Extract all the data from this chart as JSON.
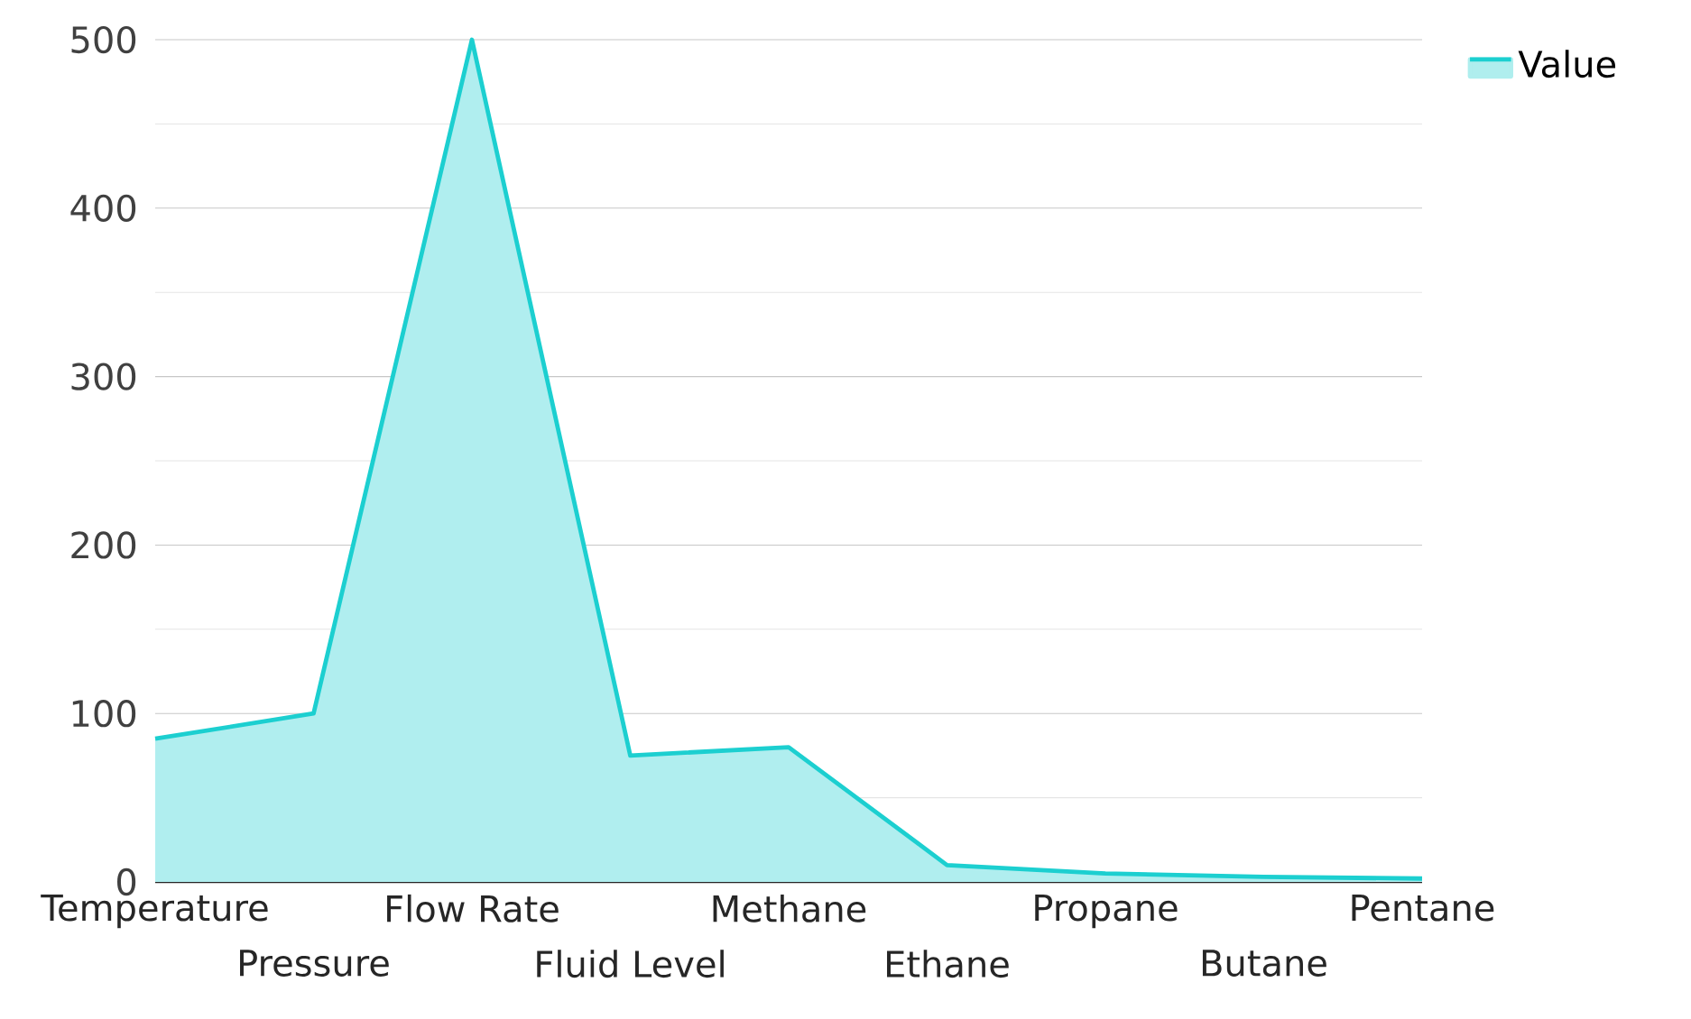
{
  "chart_data": {
    "type": "area",
    "categories": [
      "Temperature",
      "Pressure",
      "Flow Rate",
      "Fluid Level",
      "Methane",
      "Ethane",
      "Propane",
      "Butane",
      "Pentane"
    ],
    "series": [
      {
        "name": "Value",
        "color": "#1ccfd0",
        "values": [
          85,
          100,
          500,
          75,
          80,
          10,
          5,
          3,
          2
        ]
      }
    ],
    "ylim": [
      0,
      500
    ],
    "yticks": [
      0,
      {
        "value": 50,
        "label": null
      },
      100,
      {
        "value": 150,
        "label": null
      },
      200,
      {
        "value": 250,
        "label": null
      },
      300,
      {
        "value": 350,
        "label": null
      },
      400,
      {
        "value": 450,
        "label": null
      },
      500
    ],
    "grid": "y",
    "legend": "top right"
  }
}
